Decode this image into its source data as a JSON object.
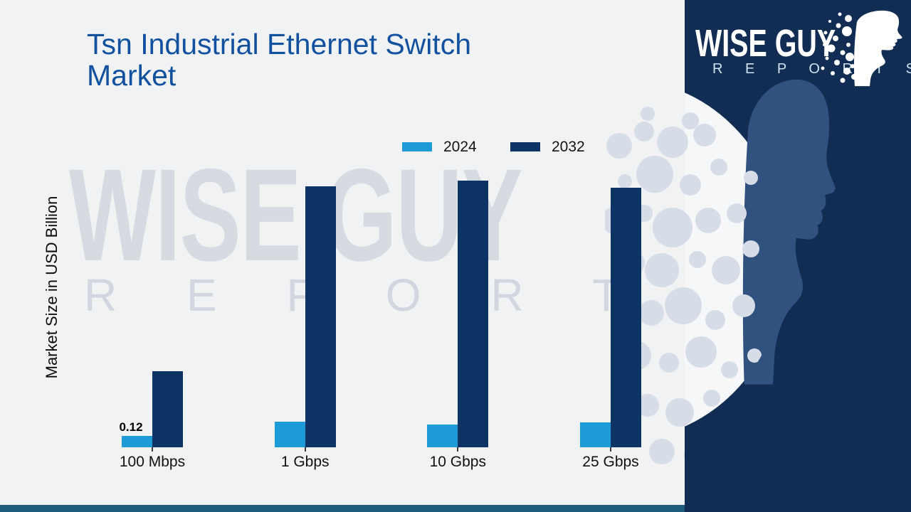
{
  "page": {
    "background": "#f1f2f3"
  },
  "header": {
    "title_line1": "Tsn Industrial Ethernet Switch",
    "title_line2": "Market",
    "title_color": "#11519f"
  },
  "watermark": {
    "line1": "WISE GUY",
    "line2": "R E P O R T S"
  },
  "brand": {
    "name": "WISE GUY",
    "sub": "R E P O R T S",
    "panel_color": "#112d54",
    "strip_color": "#1d5b7a",
    "silhouette_color": "#31517e",
    "circle_color": "#f5f7f9",
    "dot_color": "#d7dde7"
  },
  "chart_data": {
    "type": "bar",
    "title": "Tsn Industrial Ethernet Switch Market",
    "xlabel": "",
    "ylabel": "Market Size in USD Billion",
    "categories": [
      "100 Mbps",
      "1 Gbps",
      "10 Gbps",
      "25 Gbps"
    ],
    "series": [
      {
        "name": "2024",
        "color": "#1d9bd7",
        "values": [
          0.12,
          0.27,
          0.24,
          0.26
        ]
      },
      {
        "name": "2032",
        "color": "#0d3464",
        "values": [
          0.8,
          2.75,
          2.81,
          2.74
        ]
      }
    ],
    "data_labels": [
      {
        "series": "2024",
        "category": "100 Mbps",
        "text": "0.12"
      }
    ],
    "ylim": [
      0,
      3
    ],
    "grid": false,
    "legend_position": "top-center"
  }
}
